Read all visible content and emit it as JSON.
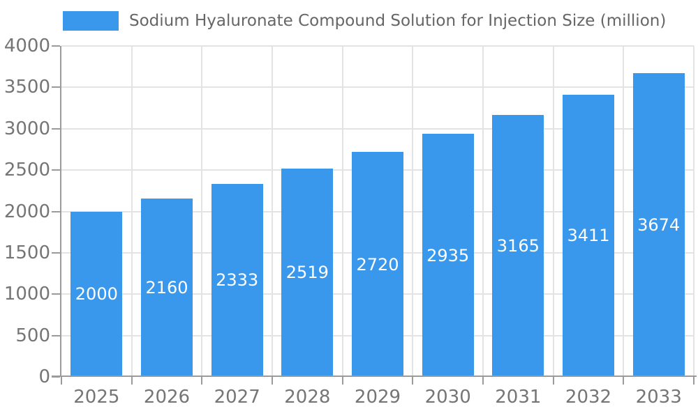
{
  "chart_data": {
    "type": "bar",
    "title": "Sodium Hyaluronate Compound Solution for Injection Size (million)",
    "categories": [
      "2025",
      "2026",
      "2027",
      "2028",
      "2029",
      "2030",
      "2031",
      "2032",
      "2033"
    ],
    "values": [
      2000,
      2160,
      2333,
      2519,
      2720,
      2935,
      3165,
      3411,
      3674
    ],
    "xlabel": "",
    "ylabel": "",
    "ylim": [
      0,
      4000
    ],
    "yticks": [
      0,
      500,
      1000,
      1500,
      2000,
      2500,
      3000,
      3500,
      4000
    ],
    "grid": true,
    "legend_position": "top-left",
    "value_labels_inside_bars": true
  },
  "colors": {
    "bar": "#3A98EC",
    "grid": "#E3E3E3",
    "axis": "#9B9B9B",
    "tick_label_text": "#757575",
    "legend_text": "#666666",
    "value_label_text": "#FFFFFF",
    "background": "#FFFFFF"
  }
}
